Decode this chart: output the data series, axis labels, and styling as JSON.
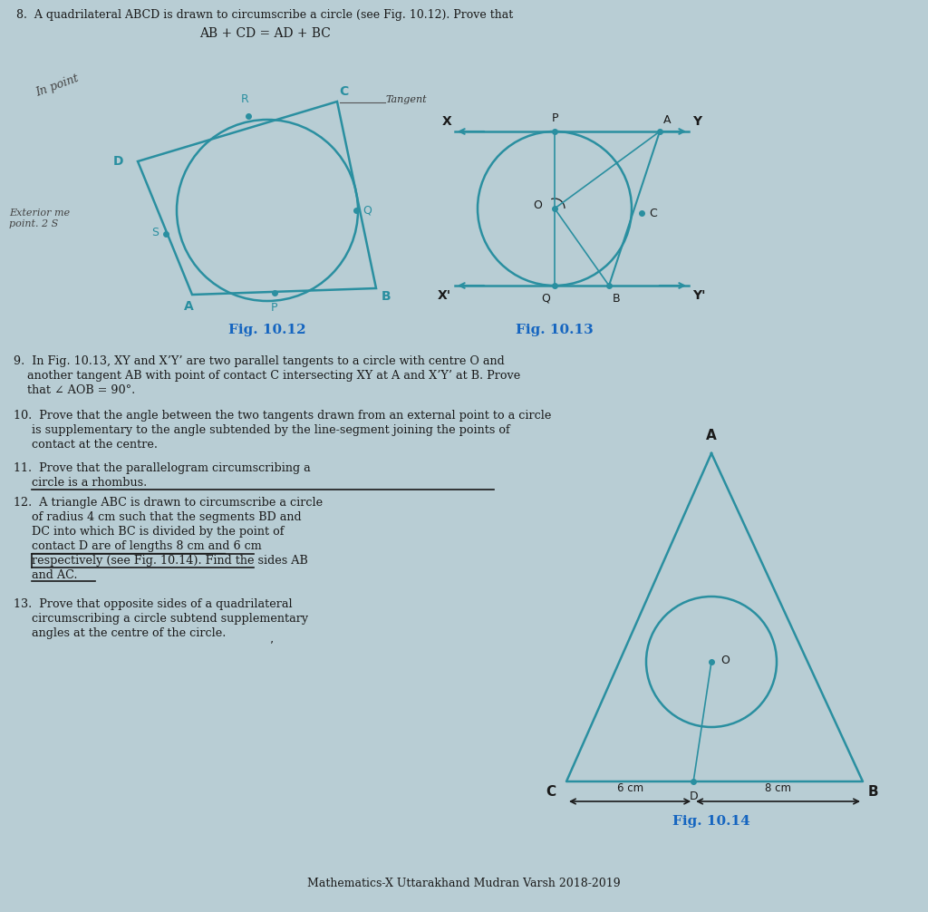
{
  "bg_color": "#b8cdd4",
  "teal_color": "#2a8fa0",
  "dark_color": "#1a1a1a",
  "fig_label_color": "#1565c0",
  "title_text": "8.  A quadrilateral ABCD is drawn to circumscribe a circle (see Fig. 10.12). Prove that",
  "subtitle_text": "AB + CD = AD + BC",
  "fig1_label": "Fig. 10.12",
  "fig2_label": "Fig. 10.13",
  "fig3_label": "Fig. 10.14",
  "footer_text": "Mathematics-X Uttarakhand Mudran Varsh 2018-2019"
}
